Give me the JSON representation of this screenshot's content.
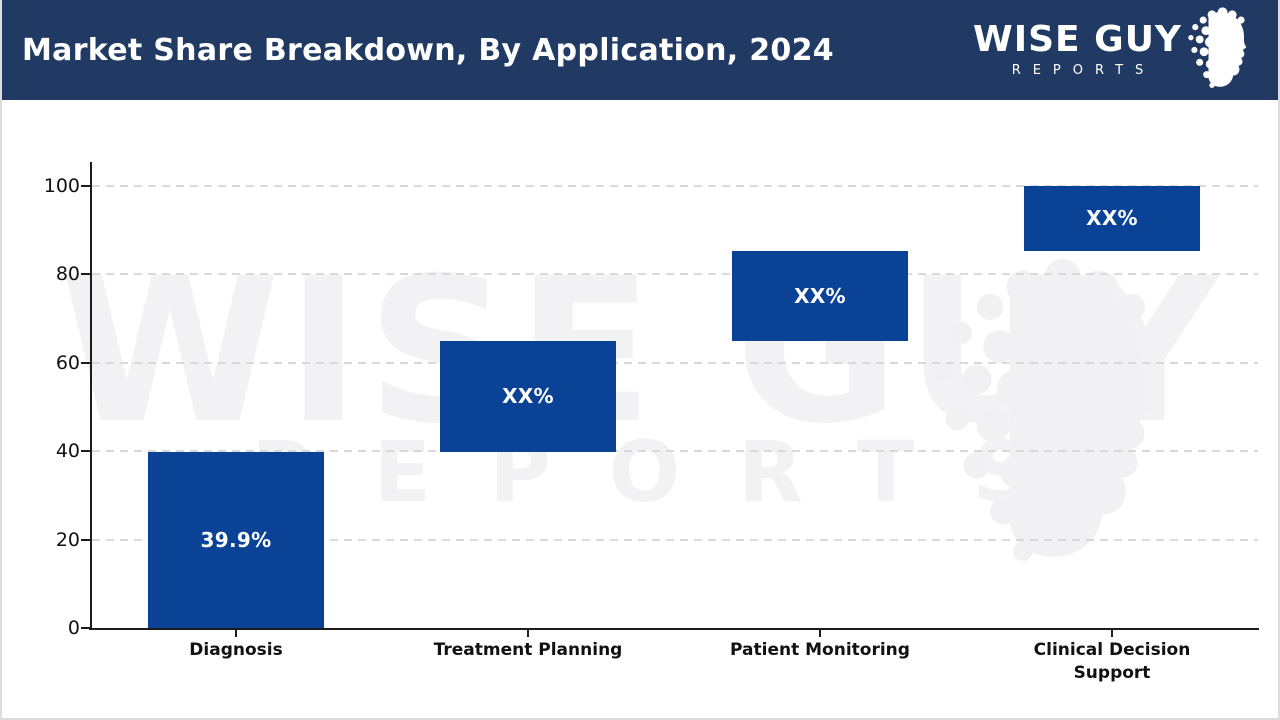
{
  "header": {
    "title": "Market Share Breakdown, By Application, 2024",
    "logo": {
      "line1": "WISE GUY",
      "line2": "REPORTS"
    }
  },
  "watermark": {
    "line1": "WISE GUY",
    "line2": "REPORTS"
  },
  "chart_data": {
    "type": "bar",
    "subtype": "waterfall-floating-bars",
    "title": "Market Share Breakdown, By Application, 2024",
    "categories": [
      "Diagnosis",
      "Treatment Planning",
      "Patient Monitoring",
      "Clinical Decision Support"
    ],
    "series": [
      {
        "name": "Market share (%)",
        "segments": [
          {
            "category": "Diagnosis",
            "start": 0,
            "end": 39.9,
            "label": "39.9%"
          },
          {
            "category": "Treatment Planning",
            "start": 39.9,
            "end": 64.9,
            "label": "XX%"
          },
          {
            "category": "Patient Monitoring",
            "start": 64.9,
            "end": 85.4,
            "label": "XX%"
          },
          {
            "category": "Clinical Decision Support",
            "start": 85.4,
            "end": 100,
            "label": "XX%"
          }
        ]
      }
    ],
    "xlabel": "",
    "ylabel": "",
    "ylim": [
      0,
      100
    ],
    "yticks": [
      0,
      20,
      40,
      60,
      80,
      100
    ],
    "grid": "horizontal-dashed",
    "legend": "none",
    "bar_color": "#0a4296",
    "bar_label_color": "#ffffff"
  }
}
